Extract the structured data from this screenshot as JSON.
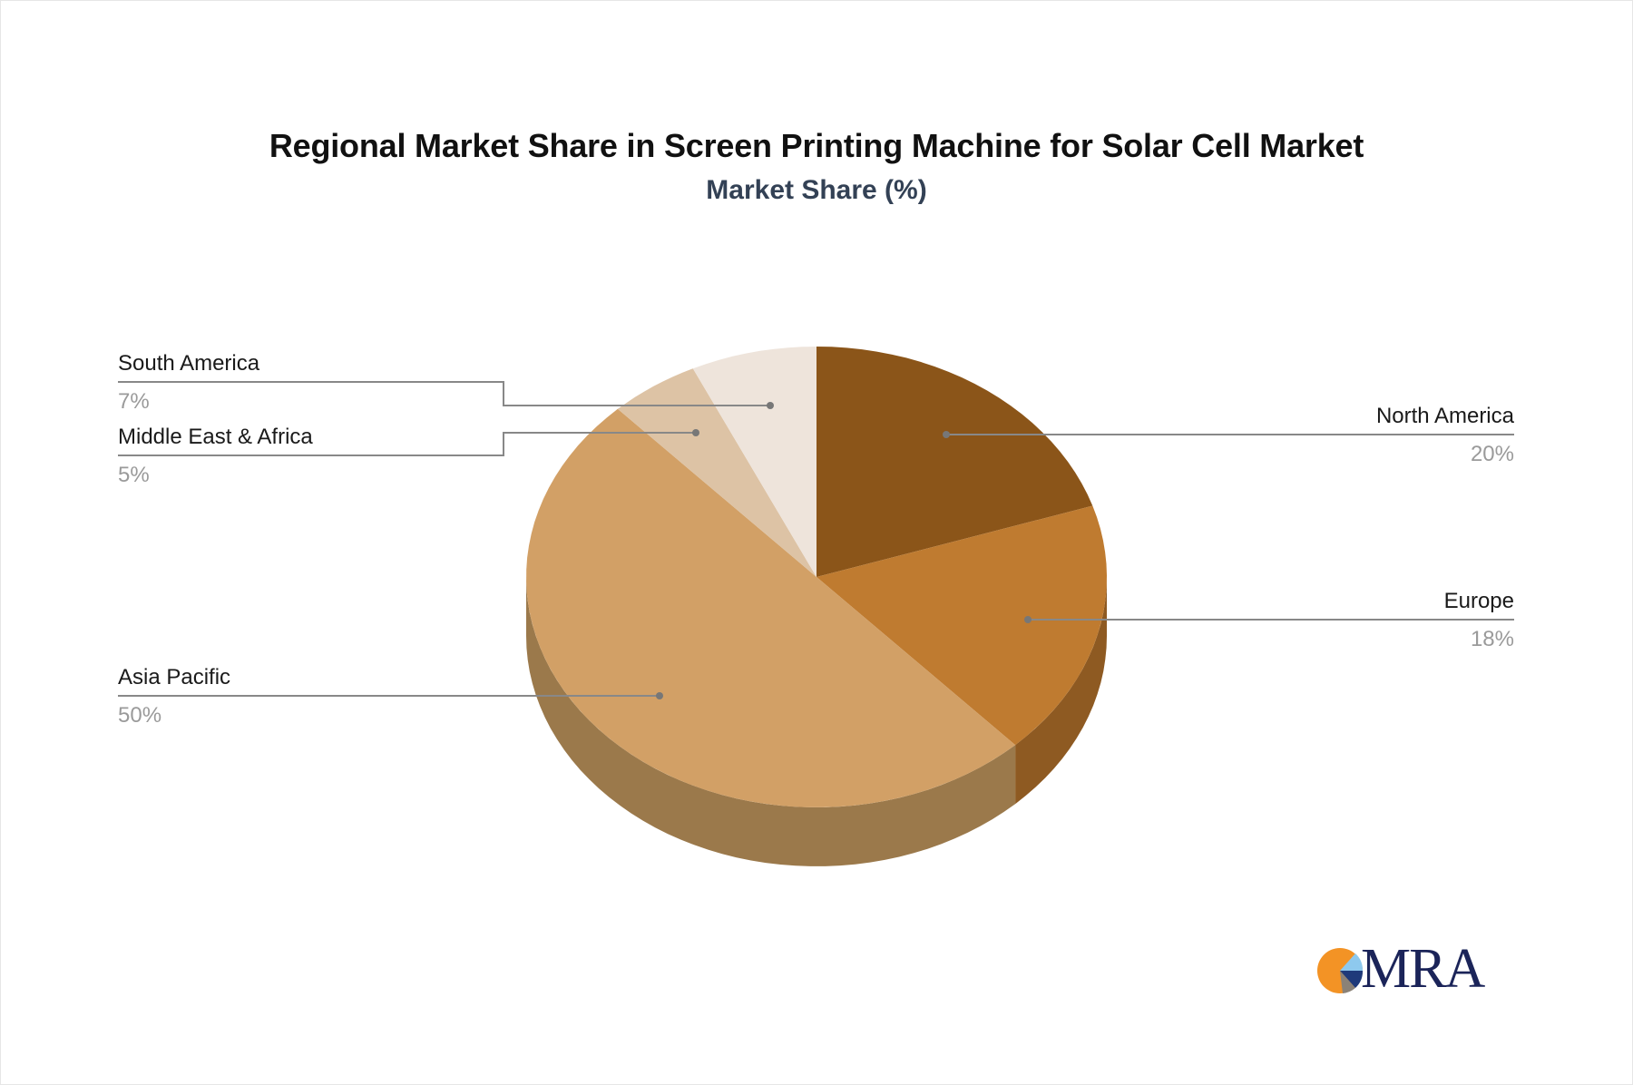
{
  "title": "Regional Market Share in Screen Printing Machine for Solar Cell Market",
  "subtitle": "Market Share (%)",
  "logo": {
    "text": "MRA"
  },
  "chart_data": {
    "type": "pie",
    "style": "3d",
    "title": "Regional Market Share in Screen Printing Machine for Solar Cell Market",
    "subtitle": "Market Share (%)",
    "categories": [
      "North America",
      "Europe",
      "Asia Pacific",
      "Middle East & Africa",
      "South America"
    ],
    "values": [
      20,
      18,
      50,
      5,
      7
    ],
    "unit": "%",
    "colors": [
      "#8B5519",
      "#BF7B30",
      "#D2A066",
      "#DDC3A5",
      "#EEE4DB"
    ],
    "side_colors": [
      "#6F4414",
      "#8E5A22",
      "#9B794B",
      "#B09C84",
      "#BEB6AF"
    ],
    "labels": [
      {
        "name": "North America",
        "value": "20%"
      },
      {
        "name": "Europe",
        "value": "18%"
      },
      {
        "name": "Asia Pacific",
        "value": "50%"
      },
      {
        "name": "Middle East & Africa",
        "value": "5%"
      },
      {
        "name": "South America",
        "value": "7%"
      }
    ],
    "legend": "none (callout labels)",
    "start_angle_deg": 0,
    "direction": "clockwise"
  }
}
